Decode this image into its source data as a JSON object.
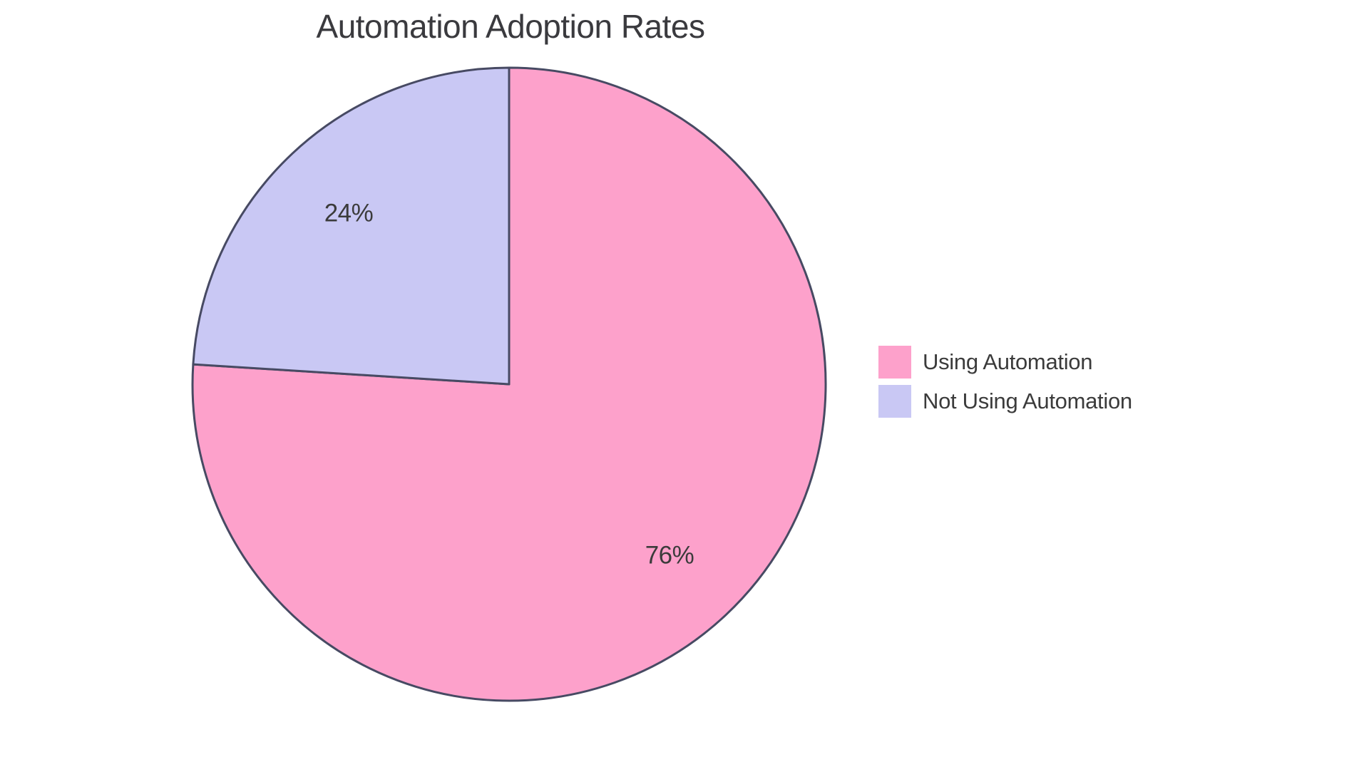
{
  "chart_data": {
    "type": "pie",
    "title": "Automation Adoption Rates",
    "slices": [
      {
        "label": "Using Automation",
        "value": 76,
        "display": "76%",
        "color": "#FDA1CB"
      },
      {
        "label": "Not Using Automation",
        "value": 24,
        "display": "24%",
        "color": "#C9C8F4"
      }
    ],
    "outline_color": "#474A63",
    "label_color": "#3B3B3B",
    "title_color": "#3A3A3E",
    "background": "#FFFFFF",
    "legend_position": "right",
    "start_angle": "top",
    "direction": "clockwise"
  }
}
